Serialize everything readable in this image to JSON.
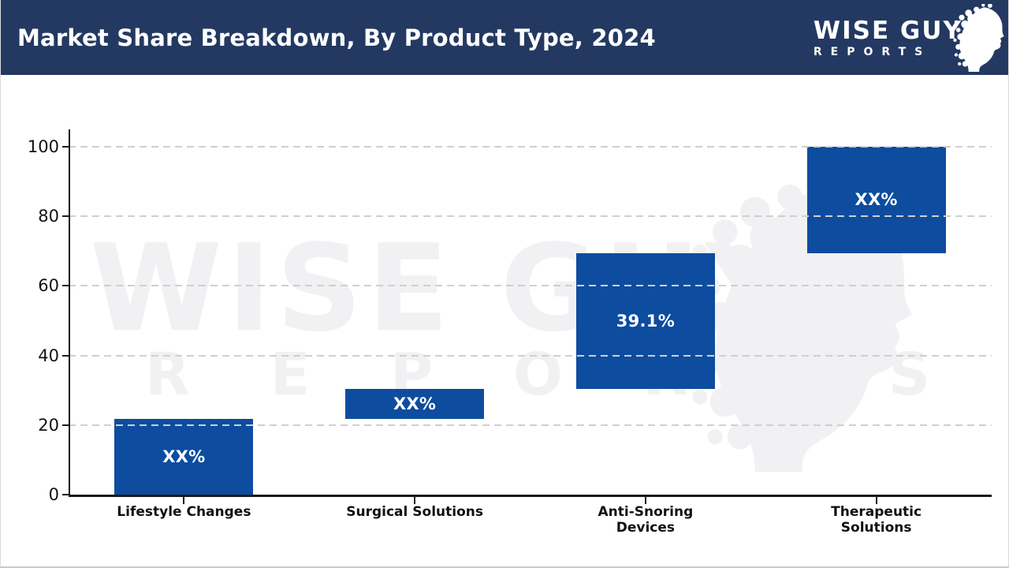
{
  "header": {
    "title": "Market Share Breakdown, By Product Type, 2024",
    "logo": {
      "line1": "WISE GUY",
      "line2": "REPORTS"
    }
  },
  "watermark": {
    "line1": "WISE GUY",
    "line2": "R E P O R T S"
  },
  "chart_data": {
    "type": "bar",
    "subtype": "waterfall",
    "title": "Market Share Breakdown, By Product Type, 2024",
    "categories": [
      "Lifestyle Changes",
      "Surgical Solutions",
      "Anti-Snoring Devices",
      "Therapeutic Solutions"
    ],
    "category_display_lines": [
      [
        "Lifestyle Changes"
      ],
      [
        "Surgical Solutions"
      ],
      [
        "Anti-Snoring",
        "Devices"
      ],
      [
        "Therapeutic",
        "Solutions"
      ]
    ],
    "segments": [
      {
        "category": "Lifestyle Changes",
        "start": 0,
        "end": 21.8,
        "value": 21.8,
        "label": "XX%"
      },
      {
        "category": "Surgical Solutions",
        "start": 21.8,
        "end": 30.4,
        "value": 8.6,
        "label": "XX%"
      },
      {
        "category": "Anti-Snoring Devices",
        "start": 30.4,
        "end": 69.5,
        "value": 39.1,
        "label": "39.1%"
      },
      {
        "category": "Therapeutic Solutions",
        "start": 69.5,
        "end": 100,
        "value": 30.5,
        "label": "XX%"
      }
    ],
    "xlabel": "",
    "ylabel": "",
    "ylim": [
      0,
      105
    ],
    "yticks": [
      0,
      20,
      40,
      60,
      80,
      100
    ],
    "grid": "horizontal dashed, drawn above bars",
    "legend": "none",
    "colors": {
      "bar": "#0d4c9f",
      "header_bg": "#233962",
      "grid": "#cfcfcf",
      "axis": "#1a1a1a",
      "bar_label_text": "#ffffff",
      "tick_text": "#111111",
      "watermark": "#f1f1f4"
    }
  }
}
